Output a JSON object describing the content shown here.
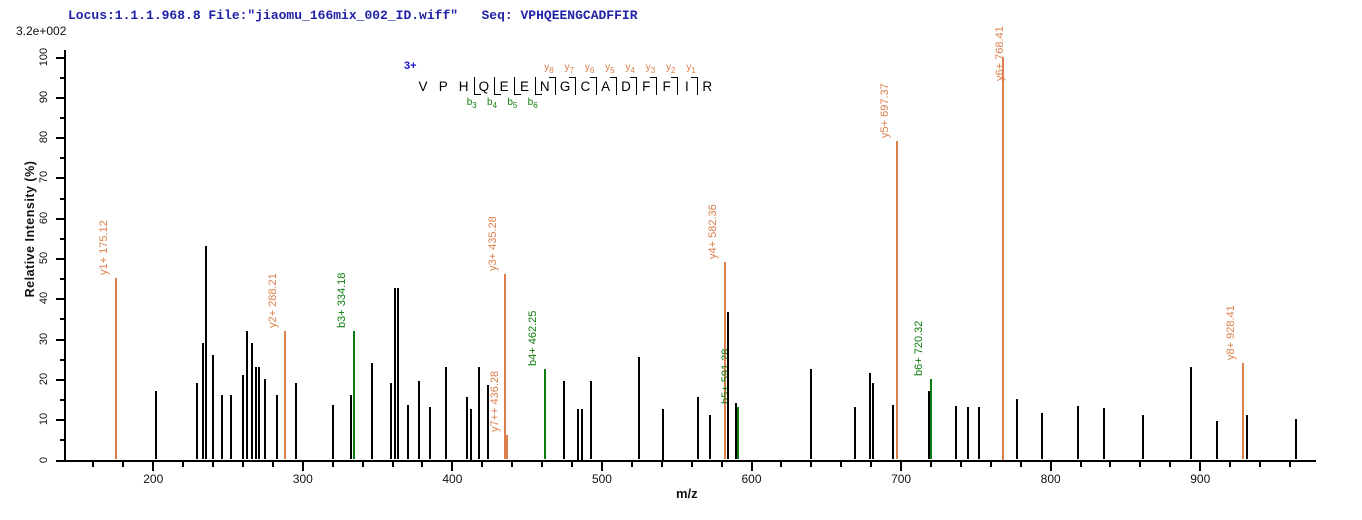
{
  "header": {
    "locus_file": "Locus:1.1.1.968.8 File:\"jiaomu_166mix_002_ID.wiff\"",
    "seq": "Seq: VPHQEENGCADFFIR",
    "separator": "   ",
    "base_peak_intensity": "3.2e+002"
  },
  "peptide": {
    "charge": "3+",
    "residues": [
      "V",
      "P",
      "H",
      "Q",
      "E",
      "E",
      "N",
      "G",
      "C",
      "A",
      "D",
      "F",
      "F",
      "I",
      "R"
    ],
    "cleavages": [
      {
        "after": 2,
        "b": "b3"
      },
      {
        "after": 3,
        "b": "b4"
      },
      {
        "after": 4,
        "b": "b5"
      },
      {
        "after": 5,
        "b": "b6"
      },
      {
        "after": 6,
        "y": "y8"
      },
      {
        "after": 7,
        "y": "y7"
      },
      {
        "after": 8,
        "y": "y6"
      },
      {
        "after": 9,
        "y": "y5"
      },
      {
        "after": 10,
        "y": "y4"
      },
      {
        "after": 11,
        "y": "y3"
      },
      {
        "after": 12,
        "y": "y2"
      },
      {
        "after": 13,
        "y": "y1"
      }
    ]
  },
  "colors": {
    "y_ion": "#dc7f4b",
    "b_ion": "#0e7d0e",
    "peak_black": "#000000",
    "header_navy": "#2121a8",
    "charge_blue": "#1414cc"
  },
  "chart_data": {
    "type": "bar",
    "subtype": "centroid-ms2-spectrum",
    "title": "",
    "xlabel": "m/z",
    "ylabel": "Relative  Intensity (%)",
    "xlim": [
      141,
      976
    ],
    "ylim": [
      0,
      100
    ],
    "x_major_ticks": [
      200,
      300,
      400,
      500,
      600,
      700,
      800,
      900
    ],
    "x_minor_tick_step": 20,
    "y_major_ticks": [
      0,
      10,
      20,
      30,
      40,
      50,
      60,
      70,
      80,
      90,
      100
    ],
    "y_minor_tick_step": 5,
    "grid": false,
    "legend": false,
    "base_peak_intensity": "3.2e+002",
    "series": [
      {
        "name": "y-ions",
        "color": "#dc7f4b",
        "points": [
          {
            "label": "y1+ 175.12",
            "mz": 175.12,
            "intensity": 45
          },
          {
            "label": "y2+ 288.21",
            "mz": 288.21,
            "intensity": 32
          },
          {
            "label": "y3+ 435.28",
            "mz": 435.28,
            "intensity": 46
          },
          {
            "label": "y7++ 436.28",
            "mz": 436.28,
            "intensity": 6
          },
          {
            "label": "y4+ 582.36",
            "mz": 582.36,
            "intensity": 49
          },
          {
            "label": "y5+ 697.37",
            "mz": 697.37,
            "intensity": 79
          },
          {
            "label": "y6+ 768.41",
            "mz": 768.41,
            "intensity": 100,
            "label_dx": 9,
            "label_dy": 27
          },
          {
            "label": "y8+ 928.41",
            "mz": 928.41,
            "intensity": 24
          }
        ]
      },
      {
        "name": "b-ions",
        "color": "#0e7d0e",
        "points": [
          {
            "label": "b3+ 334.18",
            "mz": 334.18,
            "intensity": 32
          },
          {
            "label": "b4+ 462.25",
            "mz": 462.25,
            "intensity": 22.5
          },
          {
            "label": "b5+ 591.28",
            "mz": 591.28,
            "intensity": 13
          },
          {
            "label": "b6+ 720.32",
            "mz": 720.32,
            "intensity": 20
          }
        ]
      },
      {
        "name": "unassigned",
        "color": "#000000",
        "points": [
          {
            "mz": 202,
            "intensity": 17
          },
          {
            "mz": 229.5,
            "intensity": 19
          },
          {
            "mz": 233,
            "intensity": 29
          },
          {
            "mz": 235,
            "intensity": 53
          },
          {
            "mz": 240,
            "intensity": 26
          },
          {
            "mz": 246,
            "intensity": 16
          },
          {
            "mz": 252,
            "intensity": 16
          },
          {
            "mz": 260,
            "intensity": 21
          },
          {
            "mz": 263,
            "intensity": 32
          },
          {
            "mz": 266,
            "intensity": 29
          },
          {
            "mz": 268.5,
            "intensity": 23
          },
          {
            "mz": 271,
            "intensity": 23
          },
          {
            "mz": 275,
            "intensity": 20
          },
          {
            "mz": 283,
            "intensity": 16
          },
          {
            "mz": 295.5,
            "intensity": 19
          },
          {
            "mz": 320,
            "intensity": 13.5
          },
          {
            "mz": 332,
            "intensity": 16
          },
          {
            "mz": 346,
            "intensity": 24
          },
          {
            "mz": 359,
            "intensity": 19
          },
          {
            "mz": 361.5,
            "intensity": 42.5
          },
          {
            "mz": 363.5,
            "intensity": 42.5
          },
          {
            "mz": 370.5,
            "intensity": 13.5
          },
          {
            "mz": 377.5,
            "intensity": 19.5
          },
          {
            "mz": 385,
            "intensity": 13
          },
          {
            "mz": 395.5,
            "intensity": 23
          },
          {
            "mz": 410,
            "intensity": 15.5
          },
          {
            "mz": 412.5,
            "intensity": 12.5
          },
          {
            "mz": 418,
            "intensity": 23
          },
          {
            "mz": 424,
            "intensity": 18.5
          },
          {
            "mz": 474.5,
            "intensity": 19.5
          },
          {
            "mz": 484,
            "intensity": 12.5
          },
          {
            "mz": 486.5,
            "intensity": 12.5
          },
          {
            "mz": 492.5,
            "intensity": 19.5
          },
          {
            "mz": 524.5,
            "intensity": 25.5
          },
          {
            "mz": 541,
            "intensity": 12.5
          },
          {
            "mz": 564,
            "intensity": 15.5
          },
          {
            "mz": 572.5,
            "intensity": 11
          },
          {
            "mz": 584,
            "intensity": 36.5
          },
          {
            "mz": 589.5,
            "intensity": 14
          },
          {
            "mz": 639.5,
            "intensity": 22.5
          },
          {
            "mz": 669,
            "intensity": 13
          },
          {
            "mz": 679,
            "intensity": 21.5
          },
          {
            "mz": 681,
            "intensity": 19
          },
          {
            "mz": 694.5,
            "intensity": 13.5
          },
          {
            "mz": 718.5,
            "intensity": 17
          },
          {
            "mz": 737,
            "intensity": 13.3
          },
          {
            "mz": 744.5,
            "intensity": 13
          },
          {
            "mz": 752,
            "intensity": 13
          },
          {
            "mz": 777.5,
            "intensity": 15
          },
          {
            "mz": 794.5,
            "intensity": 11.5
          },
          {
            "mz": 818.5,
            "intensity": 13.3
          },
          {
            "mz": 835.5,
            "intensity": 12.7
          },
          {
            "mz": 862,
            "intensity": 11
          },
          {
            "mz": 893.5,
            "intensity": 23
          },
          {
            "mz": 911,
            "intensity": 9.5
          },
          {
            "mz": 931,
            "intensity": 11
          },
          {
            "mz": 964,
            "intensity": 10
          }
        ]
      }
    ]
  }
}
